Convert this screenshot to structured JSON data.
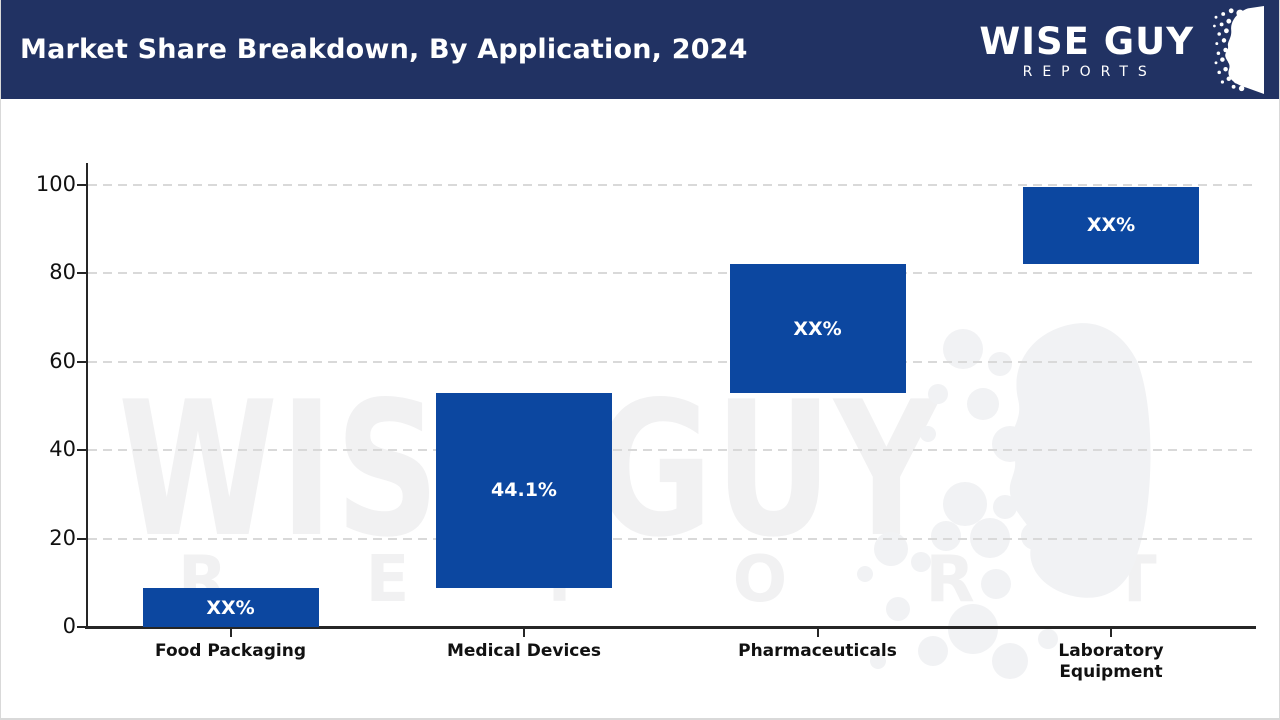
{
  "header": {
    "title": "Market Share Breakdown, By Application, 2024",
    "logo": {
      "brand": "WISE GUY",
      "sub": "REPORTS"
    }
  },
  "watermark": {
    "brand": "WISE GUY",
    "sub": "R E P O R T S"
  },
  "colors": {
    "header_bg": "#213263",
    "bar": "#0c47a0",
    "bar_label": "#ffffff",
    "grid": "#d9d9d9",
    "axis": "#262626",
    "watermark": "#f1f1f2"
  },
  "chart_data": {
    "type": "bar",
    "subtype": "floating-segment / waterfall of market share",
    "title": "Market Share Breakdown, By Application, 2024",
    "categories": [
      "Food Packaging",
      "Medical Devices",
      "Pharmaceuticals",
      "Laboratory Equipment"
    ],
    "segments": [
      {
        "category": "Food Packaging",
        "start": 0,
        "end": 8.8,
        "value": 8.8,
        "label": "XX%"
      },
      {
        "category": "Medical Devices",
        "start": 8.8,
        "end": 52.9,
        "value": 44.1,
        "label": "44.1%"
      },
      {
        "category": "Pharmaceuticals",
        "start": 52.9,
        "end": 82.0,
        "value": 29.1,
        "label": "XX%"
      },
      {
        "category": "Laboratory Equipment",
        "start": 82.0,
        "end": 99.5,
        "value": 17.5,
        "label": "XX%"
      }
    ],
    "xlabel": "",
    "ylabel": "",
    "ylim": [
      0,
      105
    ],
    "yticks": [
      0,
      20,
      40,
      60,
      80,
      100
    ],
    "grid": "horizontal dashed",
    "legend": "none"
  }
}
